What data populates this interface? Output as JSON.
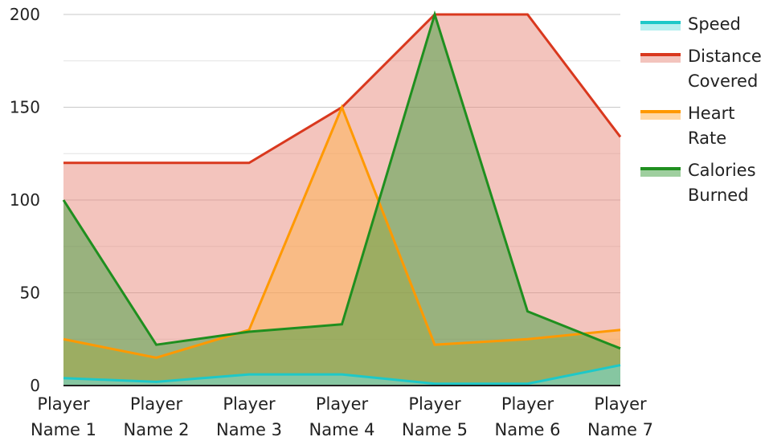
{
  "chart_data": {
    "type": "area",
    "categories": [
      [
        "Player",
        "Name 1"
      ],
      [
        "Player",
        "Name 2"
      ],
      [
        "Player",
        "Name 3"
      ],
      [
        "Player",
        "Name 4"
      ],
      [
        "Player",
        "Name 5"
      ],
      [
        "Player",
        "Name 6"
      ],
      [
        "Player",
        "Name 7"
      ]
    ],
    "ylim": [
      0,
      200
    ],
    "yticks": [
      0,
      50,
      100,
      150,
      200
    ],
    "grid": true,
    "legend_position": "right",
    "series": [
      {
        "name": "Distance Covered",
        "legend_lines": [
          "Distance",
          "Covered"
        ],
        "values": [
          120,
          120,
          120,
          150,
          200,
          200,
          134
        ],
        "color": "#d9381e",
        "fill": "#e8897c"
      },
      {
        "name": "Heart Rate",
        "legend_lines": [
          "Heart",
          "Rate"
        ],
        "values": [
          25,
          15,
          30,
          150,
          22,
          25,
          30
        ],
        "color": "#ff9900",
        "fill": "#ffb14d"
      },
      {
        "name": "Calories Burned",
        "legend_lines": [
          "Calories",
          "Burned"
        ],
        "values": [
          100,
          22,
          29,
          33,
          200,
          40,
          20
        ],
        "color": "#1f8f1f",
        "fill": "#3f9f3f"
      },
      {
        "name": "Speed",
        "legend_lines": [
          "Speed"
        ],
        "values": [
          4,
          2,
          6,
          6,
          1,
          1,
          11
        ],
        "color": "#1ec8c8",
        "fill": "#6fe0e0"
      }
    ],
    "legend_order": [
      "Speed",
      "Distance Covered",
      "Heart Rate",
      "Calories Burned"
    ]
  }
}
